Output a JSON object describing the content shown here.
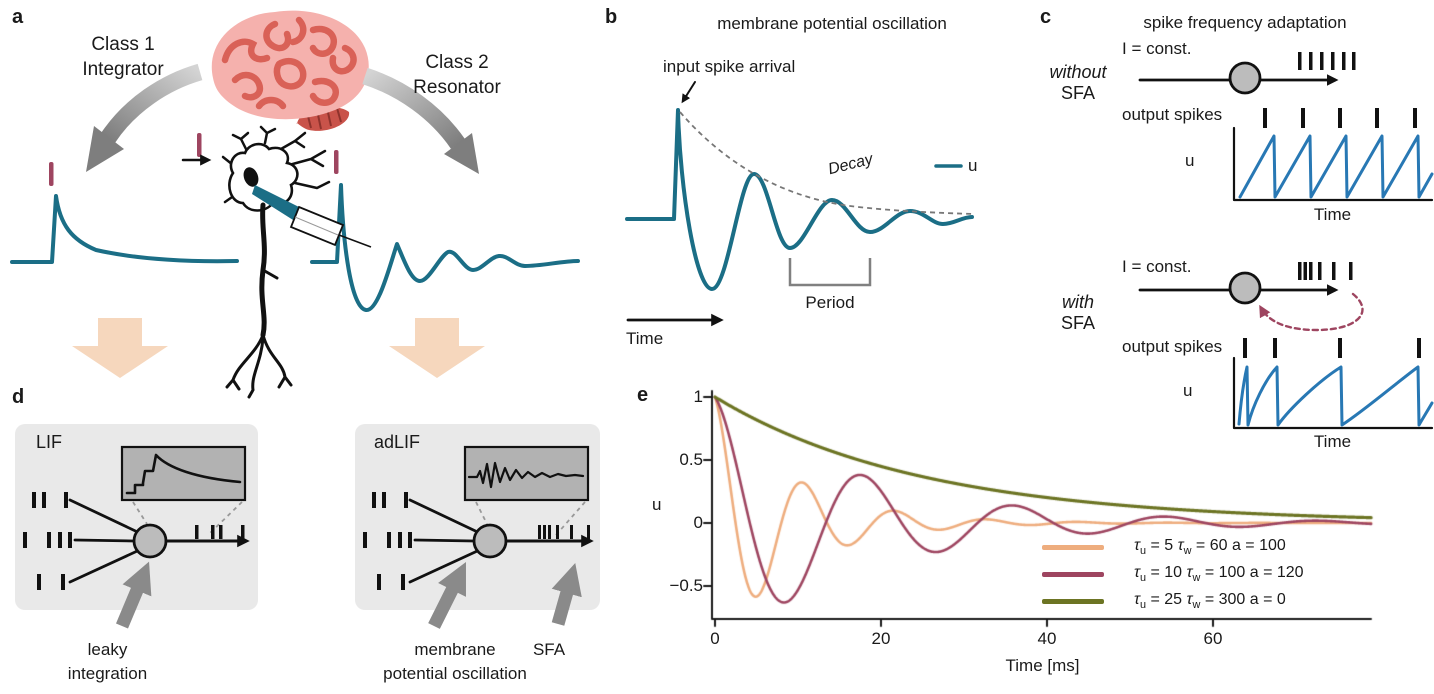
{
  "colors": {
    "teal": "#1b6e86",
    "blue": "#2878b4",
    "maroon": "#9e4560",
    "peach": "#f6d7bd",
    "olive": "#6c7423",
    "orange": "#eead7e",
    "box_gray": "#e9e9e9",
    "inset_gray": "#b2b2b2",
    "neuron_gray": "#bcbcbc",
    "arrow_gray": "#8a8a8a",
    "brain_pink": "#f5b1ad",
    "brain_dark": "#d96157",
    "brain_stem": "#c9534a"
  },
  "panels": {
    "a": {
      "label": "a",
      "class1_line1": "Class 1",
      "class1_line2": "Integrator",
      "class2_line1": "Class 2",
      "class2_line2": "Resonator"
    },
    "b": {
      "label": "b",
      "title": "membrane potential oscillation",
      "annotation": "input spike arrival",
      "decay": "Decay",
      "legend_u": "u",
      "period": "Period",
      "time": "Time"
    },
    "c": {
      "label": "c",
      "title": "spike frequency adaptation",
      "i_const": "I = const.",
      "output_spikes": "output spikes",
      "u": "u",
      "time": "Time",
      "without_line1": "without",
      "without_line2": "SFA",
      "with_line1": "with",
      "with_line2": "SFA"
    },
    "d": {
      "label": "d",
      "lif_title": "LIF",
      "adlif_title": "adLIF",
      "leaky_line1": "leaky",
      "leaky_line2": "integration",
      "mpo_line1": "membrane",
      "mpo_line2": "potential oscillation",
      "sfa": "SFA"
    },
    "e": {
      "label": "e"
    }
  },
  "chart_data": {
    "type": "line",
    "xlabel": "Time [ms]",
    "ylabel": "u",
    "xlim": [
      0,
      79
    ],
    "ylim": [
      -0.76,
      1.05
    ],
    "xticks": [
      0,
      20,
      40,
      60
    ],
    "yticks": [
      1,
      0.5,
      0,
      -0.5
    ],
    "xticklabels": [
      "0",
      "20",
      "40",
      "60"
    ],
    "yticklabels": [
      "1",
      "0.5",
      "0",
      "−0.5"
    ],
    "grid": false,
    "legend_position": "lower right",
    "model": "adLIF impulse response: tau_u*du/dt=-u-w, tau_w*dw/dt=a*u-w, u(0)=1, w(0)=0",
    "x": [
      0,
      2,
      4,
      6,
      8,
      10,
      12,
      14,
      16,
      18,
      20,
      22,
      24,
      26,
      28,
      30,
      32,
      34,
      36,
      38,
      40,
      42,
      44,
      46,
      48,
      50,
      52,
      54,
      56,
      58,
      60,
      62,
      64,
      66,
      68,
      70,
      72,
      74,
      76,
      78
    ],
    "series": [
      {
        "label": "tau_u = 5 tau_w = 60 a = 100",
        "label_html": "<i>τ</i><sub>u</sub> = 5 <i>τ</i><sub>w</sub> = 60 a = 100",
        "color": "#eead7e",
        "line_width": 2.6,
        "params": {
          "tau_u": 5,
          "tau_w": 60,
          "a": 100
        },
        "u": [
          1,
          0.21,
          -0.5,
          -0.48,
          0.01,
          0.31,
          0.21,
          -0.06,
          -0.18,
          -0.08,
          0.06,
          0.09,
          0.02,
          -0.05,
          -0.04,
          0,
          0.03,
          0.02,
          -0.01,
          -0.02,
          -0.01,
          0.01,
          0.01,
          0,
          0,
          0,
          0,
          0,
          0,
          0,
          0,
          0,
          0,
          0,
          0,
          0,
          0,
          0,
          0,
          0
        ]
      },
      {
        "label": "tau_u = 10 tau_w = 100 a = 120",
        "label_html": "<i>τ</i><sub>u</sub> = 10 <i>τ</i><sub>w</sub> = 100 a = 120",
        "color": "#9e4560",
        "line_width": 2.6,
        "params": {
          "tau_u": 10,
          "tau_w": 100,
          "a": 120
        },
        "u": [
          1,
          0.62,
          0.05,
          -0.42,
          -0.63,
          -0.53,
          -0.23,
          0.11,
          0.33,
          0.37,
          0.25,
          0.05,
          -0.13,
          -0.23,
          -0.2,
          -0.1,
          0.02,
          0.11,
          0.14,
          0.1,
          0.03,
          -0.04,
          -0.08,
          -0.08,
          -0.04,
          0,
          0.04,
          0.05,
          0.05,
          0.01,
          -0.01,
          -0.03,
          -0.03,
          -0.02,
          0,
          0.01,
          0.02,
          0.02,
          0.01,
          0
        ]
      },
      {
        "label": "tau_u = 25 tau_w = 300 a = 0",
        "label_html": "<i>τ</i><sub>u</sub> = 25 <i>τ</i><sub>w</sub> = 300 a = 0",
        "color": "#6c7423",
        "line_width": 3.2,
        "params": {
          "tau_u": 25,
          "tau_w": 300,
          "a": 0
        },
        "u": [
          1,
          0.92,
          0.85,
          0.79,
          0.73,
          0.67,
          0.62,
          0.57,
          0.53,
          0.49,
          0.45,
          0.42,
          0.38,
          0.35,
          0.33,
          0.3,
          0.28,
          0.26,
          0.24,
          0.22,
          0.2,
          0.19,
          0.17,
          0.16,
          0.15,
          0.14,
          0.13,
          0.12,
          0.11,
          0.1,
          0.09,
          0.08,
          0.08,
          0.07,
          0.07,
          0.06,
          0.06,
          0.05,
          0.05,
          0.04
        ]
      }
    ]
  }
}
